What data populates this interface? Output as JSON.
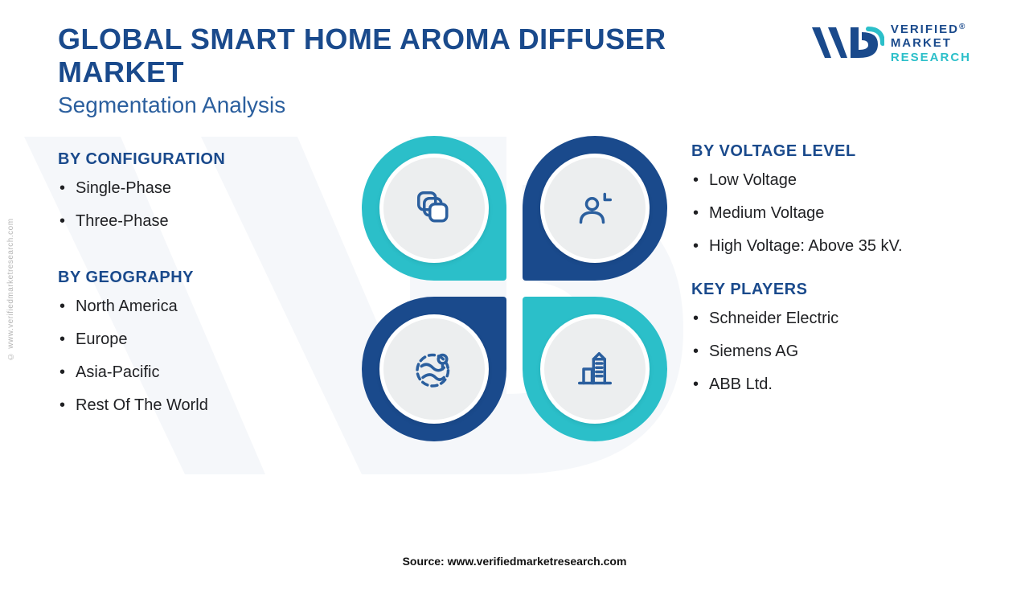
{
  "colors": {
    "title": "#1a4a8c",
    "subtitle": "#2b5f9e",
    "seg_title": "#1a4a8c",
    "teal": "#2bbfc9",
    "navy": "#1a4a8c",
    "icon": "#2b5f9e",
    "disc_bg": "#eceeef",
    "text": "#1f2023",
    "side_url": "#b7b7b7"
  },
  "header": {
    "title": "GLOBAL SMART HOME AROMA DIFFUSER MARKET",
    "subtitle": "Segmentation Analysis"
  },
  "logo": {
    "line1": "VERIFIED",
    "line2": "MARKET",
    "line3": "RESEARCH",
    "registered": "®"
  },
  "side_url": "© www.verifiedmarketresearch.com",
  "source_label": "Source: www.verifiedmarketresearch.com",
  "segments": {
    "configuration": {
      "title": "BY CONFIGURATION",
      "items": [
        "Single-Phase",
        "Three-Phase"
      ]
    },
    "geography": {
      "title": "BY GEOGRAPHY",
      "items": [
        "North America",
        "Europe",
        "Asia-Pacific",
        "Rest Of The World"
      ]
    },
    "voltage": {
      "title": "BY VOLTAGE LEVEL",
      "items": [
        "Low Voltage",
        "Medium Voltage",
        "High Voltage: Above 35 kV."
      ]
    },
    "players": {
      "title": "KEY PLAYERS",
      "items": [
        "Schneider Electric",
        "Siemens AG",
        "ABB Ltd."
      ]
    }
  },
  "petals": {
    "tl": {
      "fill": "teal",
      "icon": "layers-icon"
    },
    "tr": {
      "fill": "navy",
      "icon": "person-icon"
    },
    "bl": {
      "fill": "navy",
      "icon": "globe-icon"
    },
    "br": {
      "fill": "teal",
      "icon": "building-icon"
    }
  }
}
